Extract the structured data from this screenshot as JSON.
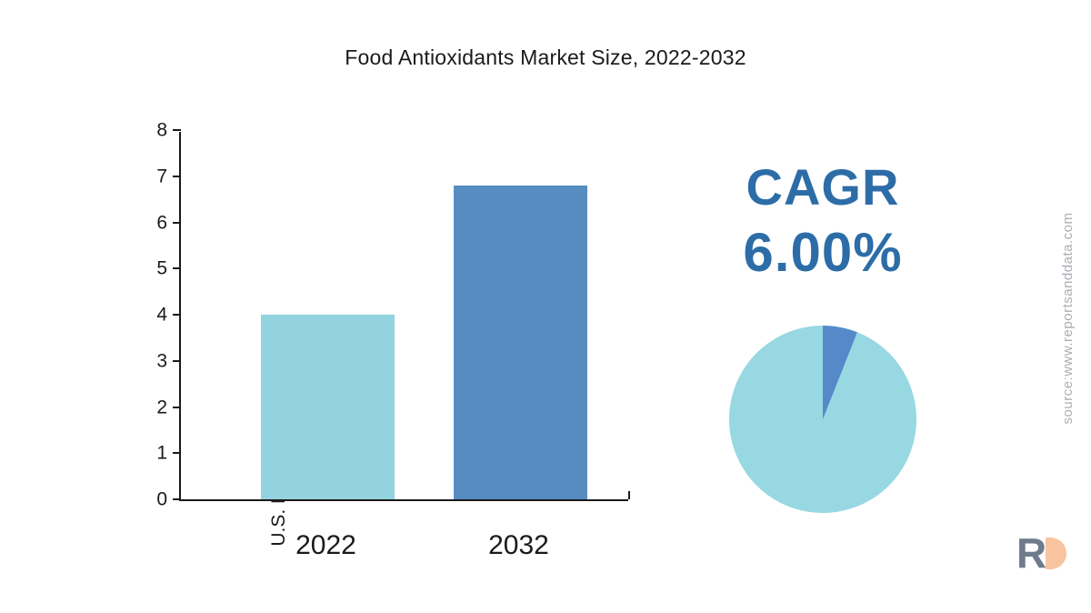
{
  "title": "Food Antioxidants Market Size, 2022-2032",
  "chart_data": {
    "type": "bar",
    "title": "Food Antioxidants Market Size, 2022-2032",
    "categories": [
      "2022",
      "2032"
    ],
    "values": [
      4.0,
      6.8
    ],
    "bar_colors": [
      "#92d3df",
      "#578cc1"
    ],
    "xlabel": "",
    "ylabel": "U.S. Dollars (In Billion)",
    "ylim": [
      0,
      8
    ],
    "yticks": [
      0,
      1,
      2,
      3,
      4,
      5,
      6,
      7,
      8
    ],
    "grid": false,
    "legend": "none"
  },
  "cagr": {
    "label": "CAGR",
    "value": "6.00%",
    "percent": 6.0,
    "color": "#2d6da7"
  },
  "pie_chart": {
    "type": "pie",
    "slices": [
      {
        "name": "cagr-slice",
        "percent": 6,
        "color": "#5689c9"
      },
      {
        "name": "remainder-slice",
        "percent": 94,
        "color": "#97d8e3"
      }
    ],
    "start_angle_deg": 0,
    "direction": "clockwise"
  },
  "source": {
    "text": "source:www.reportsanddata.com"
  },
  "logo": {
    "letter_r": "R",
    "d_color": "#f8c39f",
    "r_color": "#6e7b8b"
  }
}
